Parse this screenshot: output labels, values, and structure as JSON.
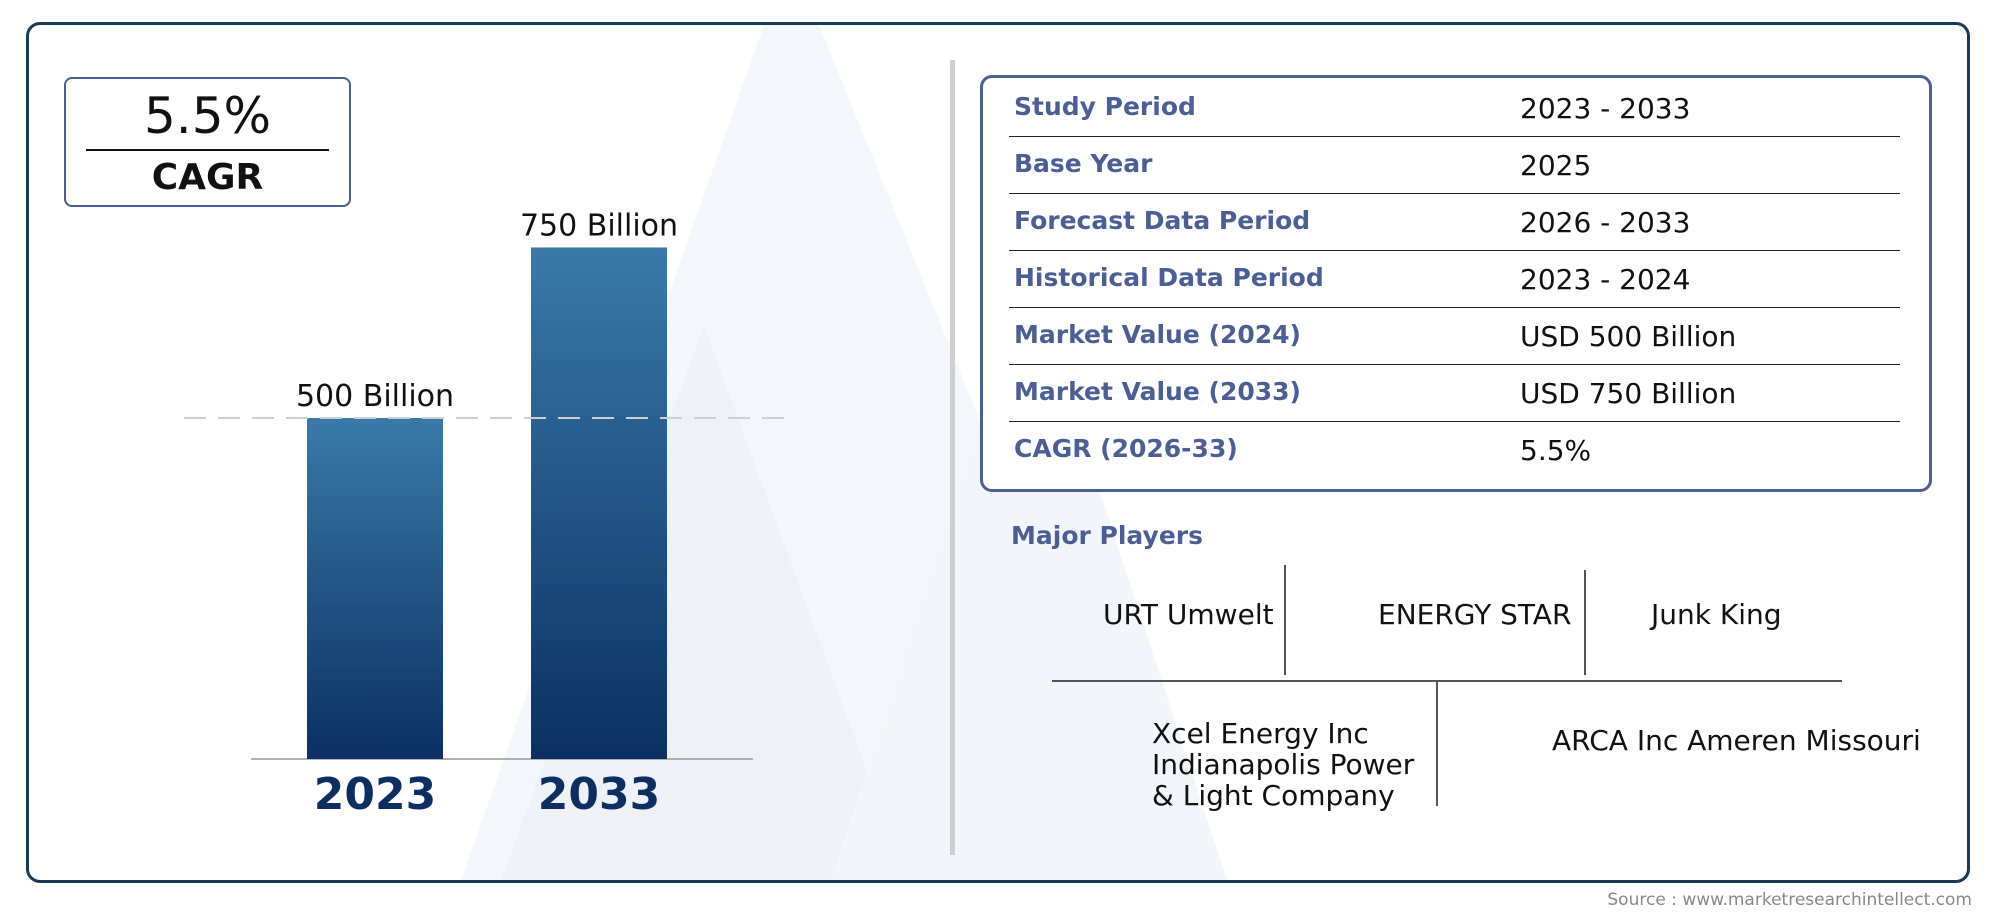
{
  "cagr_badge": {
    "value": "5.5%",
    "label": "CAGR"
  },
  "chart_data": {
    "type": "bar",
    "categories": [
      "2023",
      "2033"
    ],
    "values": [
      500,
      750
    ],
    "data_labels": [
      "500 Billion",
      "750 Billion"
    ],
    "title": "",
    "xlabel": "",
    "ylabel": "",
    "ylim": [
      0,
      780
    ],
    "reference_line_value": 500,
    "bar_gradient": [
      "#3a7aa8",
      "#0b2f63"
    ]
  },
  "info_table": [
    {
      "label": "Study Period",
      "value": "2023 - 2033"
    },
    {
      "label": "Base Year",
      "value": "2025"
    },
    {
      "label": "Forecast Data Period",
      "value": "2026 - 2033"
    },
    {
      "label": "Historical Data Period",
      "value": "2023 - 2024"
    },
    {
      "label": "Market Value (2024)",
      "value": "USD 500 Billion"
    },
    {
      "label": "Market Value (2033)",
      "value": "USD 750 Billion"
    },
    {
      "label": "CAGR (2026-33)",
      "value": "5.5%"
    }
  ],
  "major_players": {
    "title": "Major Players",
    "names": [
      "URT Umwelt",
      "ENERGY STAR",
      "Junk King",
      "Xcel Energy Inc Indianapolis Power & Light Company",
      "ARCA Inc Ameren Missouri"
    ]
  },
  "source": "Source : www.marketresearchintellect.com",
  "colors": {
    "accent": "#4a5f96",
    "frame": "#173a59",
    "year_text": "#0b2f63"
  }
}
